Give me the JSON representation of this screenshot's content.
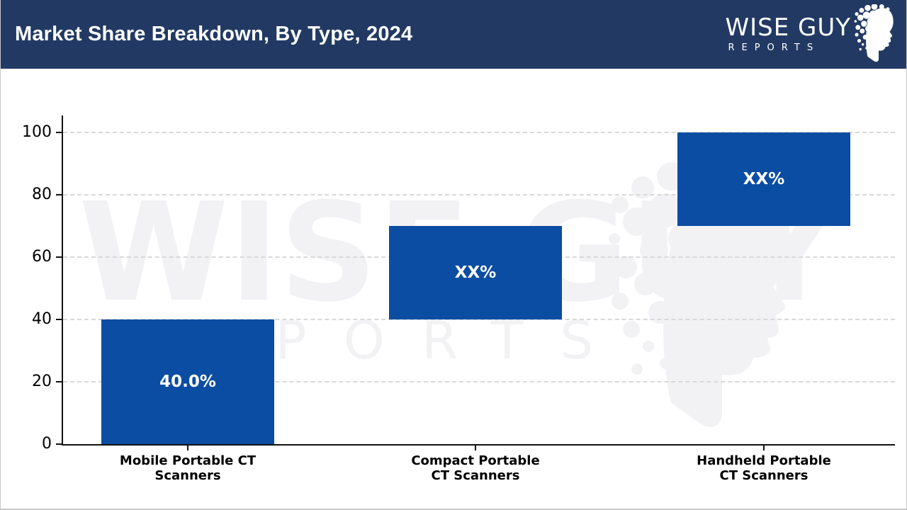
{
  "header": {
    "title": "Market Share Breakdown, By Type, 2024",
    "logo": {
      "line1": "WISE GUY",
      "line2": "REPORTS"
    }
  },
  "watermark": {
    "line1": "WISE GUY",
    "line2": "REPORTS"
  },
  "colors": {
    "header_bg": "#223a63",
    "bar_fill": "#0b4da2",
    "bar_label": "#ffffff",
    "gridline": "#d8d8d8",
    "axis": "#111111",
    "watermark": "#f2f2f5",
    "page_border": "#c9c9c9"
  },
  "chart_data": {
    "type": "bar",
    "subtype": "floating-waterfall",
    "title": "Market Share Breakdown, By Type, 2024",
    "xlabel": "",
    "ylabel": "",
    "ylim": [
      0,
      100
    ],
    "yticks": [
      0,
      20,
      40,
      60,
      80,
      100
    ],
    "grid": "horizontal-dashed",
    "legend": "none",
    "categories": [
      [
        "Mobile Portable CT",
        "Scanners"
      ],
      [
        "Compact Portable",
        "CT Scanners"
      ],
      [
        "Handheld Portable",
        "CT Scanners"
      ]
    ],
    "bars": [
      {
        "category": "Mobile Portable CT Scanners",
        "start": 0,
        "end": 40,
        "label": "40.0%"
      },
      {
        "category": "Compact Portable CT Scanners",
        "start": 40,
        "end": 70,
        "label": "XX%"
      },
      {
        "category": "Handheld Portable CT Scanners",
        "start": 70,
        "end": 100,
        "label": "XX%"
      }
    ]
  }
}
